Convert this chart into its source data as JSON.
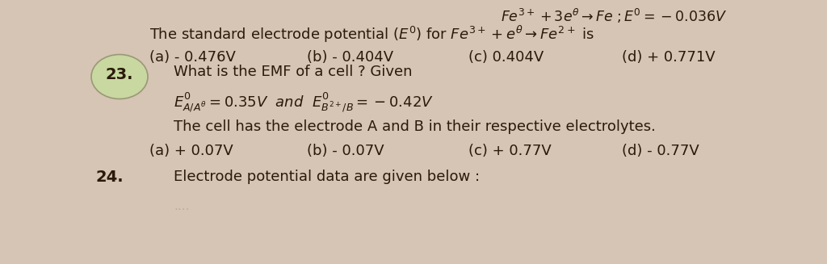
{
  "bg_color": "#d6c4b4",
  "text_color": "#2a1a0a",
  "top_right_text": "$Fe^{3+}+3e^{\\theta}\\rightarrow Fe\\;; E^{0}=-0.036V$",
  "question_intro": "The standard electrode potential $(E^{0})$ for $Fe^{3+}+e^{\\theta}\\rightarrow Fe^{2+}$ is",
  "opts1": [
    "(a) - 0.476V",
    "(b) - 0.404V",
    "(c) 0.404V",
    "(d) + 0.771V"
  ],
  "q23_text": "What is the EMF of a cell ? Given",
  "q23_eq": "$E^{0}_{A/A^{\\theta}}=0.35V$  and  $E^{0}_{B^{2+}/B}=-0.42V$",
  "q23_desc": "The cell has the electrode A and B in their respective electrolytes.",
  "opts2": [
    "(a) + 0.07V",
    "(b) - 0.07V",
    "(c) + 0.77V",
    "(d) - 0.77V"
  ],
  "q24_text": "Electrode potential data are given below :",
  "ellipse_color": "#c8d8a0",
  "ellipse_edge": "#999977"
}
